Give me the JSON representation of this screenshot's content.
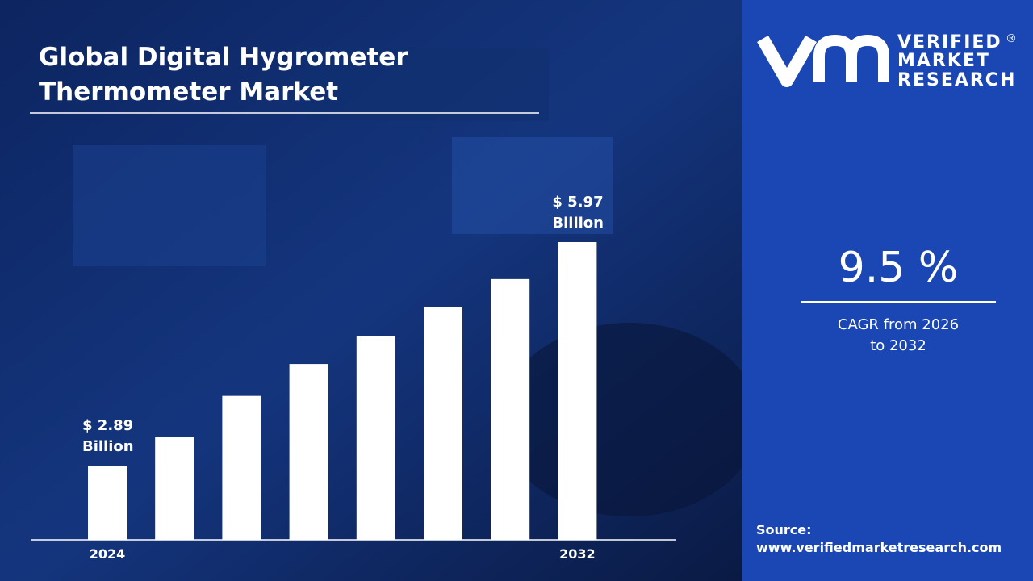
{
  "chart_data": {
    "type": "bar",
    "title": "Global Digital Hygrometer Thermometer Market",
    "categories": [
      "2024",
      null,
      null,
      null,
      null,
      null,
      null,
      "2032"
    ],
    "values": [
      2.89,
      3.29,
      3.85,
      4.29,
      4.67,
      5.08,
      5.46,
      5.97
    ],
    "value_labels": [
      "$ 2.89 Billion",
      null,
      null,
      null,
      null,
      null,
      null,
      "$ 5.97 Billion"
    ],
    "color": "#ffffff"
  },
  "brand": {
    "line1": "VERIFIED",
    "line2": "MARKET",
    "line3": "RESEARCH",
    "mark": "®"
  },
  "cagr": {
    "value": "9.5 %",
    "label": "CAGR from 2026 to 2032"
  },
  "source": {
    "label": "Source:",
    "url": "www.verifiedmarketresearch.com"
  }
}
